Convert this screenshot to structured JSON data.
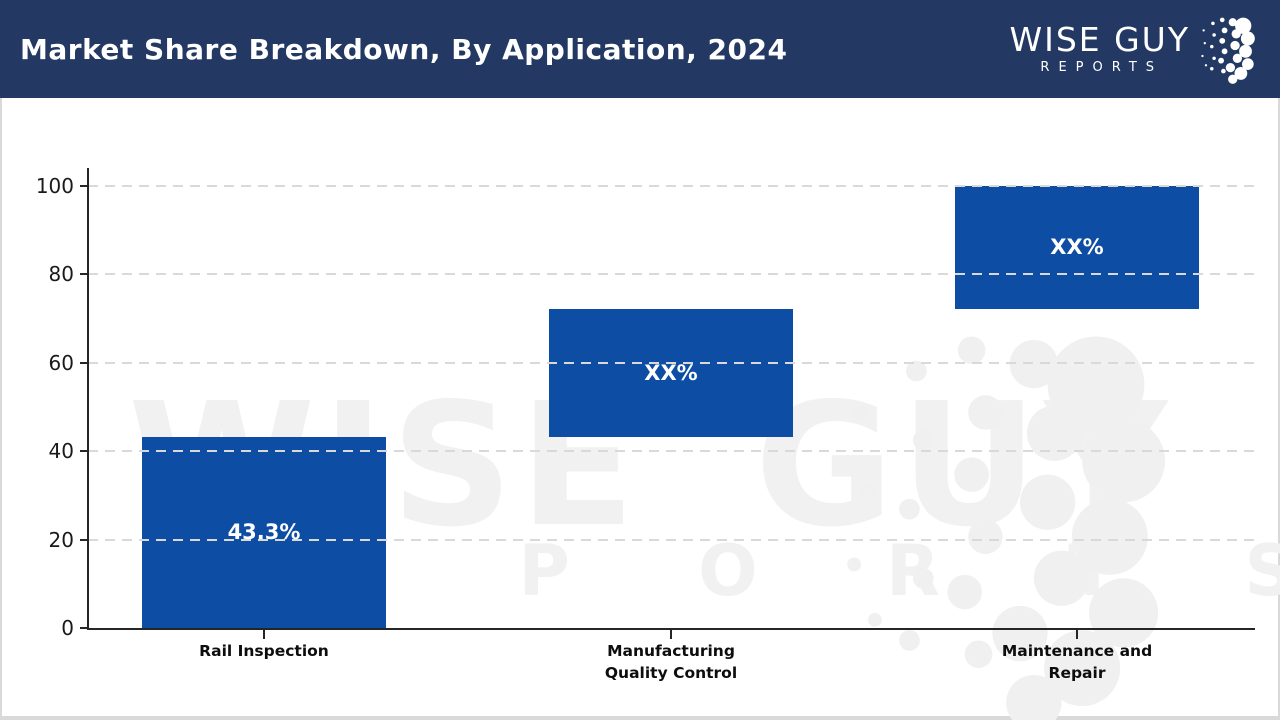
{
  "header": {
    "title": "Market Share Breakdown, By Application, 2024",
    "logo": {
      "wordmark": "WISE GUY",
      "subtitle": "REPORTS"
    }
  },
  "watermark": {
    "wordmark": "WISE GUY",
    "subtitle": "R E P O R T S"
  },
  "colors": {
    "header_navy": "#233963",
    "bar_blue": "#0e4da4",
    "gridline_gray": "#d9d9d9",
    "axis_dark": "#262626",
    "watermark_gray": "#f1f1f1"
  },
  "chart_data": {
    "type": "bar",
    "subtype": "stacked-waterfall-percent",
    "title": "Market Share Breakdown, By Application, 2024",
    "ylabel": "",
    "xlabel": "",
    "ylim": [
      0,
      100
    ],
    "yticks": [
      0,
      20,
      40,
      60,
      80,
      100
    ],
    "grid": "horizontal-dashed",
    "legend": "none",
    "categories": [
      "Rail Inspection",
      "Manufacturing Quality Control",
      "Maintenance and Repair"
    ],
    "values": [
      43.3,
      28.9,
      27.8
    ],
    "segments": [
      {
        "category_lines": [
          "Rail Inspection"
        ],
        "start": 0,
        "end": 43.3,
        "label": "43.3%"
      },
      {
        "category_lines": [
          "Manufacturing",
          "Quality Control"
        ],
        "start": 43.3,
        "end": 72.2,
        "label": "XX%"
      },
      {
        "category_lines": [
          "Maintenance and",
          "Repair"
        ],
        "start": 72.2,
        "end": 100,
        "label": "XX%"
      }
    ]
  }
}
